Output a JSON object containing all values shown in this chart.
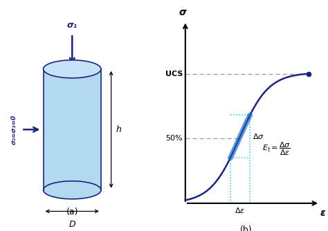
{
  "bg_color": "#ffffff",
  "dark_blue": "#1a237e",
  "arrow_blue": "#1a237e",
  "light_blue": "#b3d9f0",
  "light_blue2": "#c5e3f7",
  "curve_color": "#1a237e",
  "highlight_color": "#1565C0",
  "dot_color": "#1a237e",
  "dashed_gray": "#999999",
  "cyan_dot": "#26c6da",
  "label_a": "(a)",
  "label_b": "(b)",
  "sigma1_label": "σ₁",
  "sigma23_label": "σ₂=σ₃=0",
  "h_label": "h",
  "D_label": "D",
  "sigma_axis": "σ",
  "eps_axis": "ε",
  "UCS_label": "UCS",
  "fifty_pct": "50%"
}
